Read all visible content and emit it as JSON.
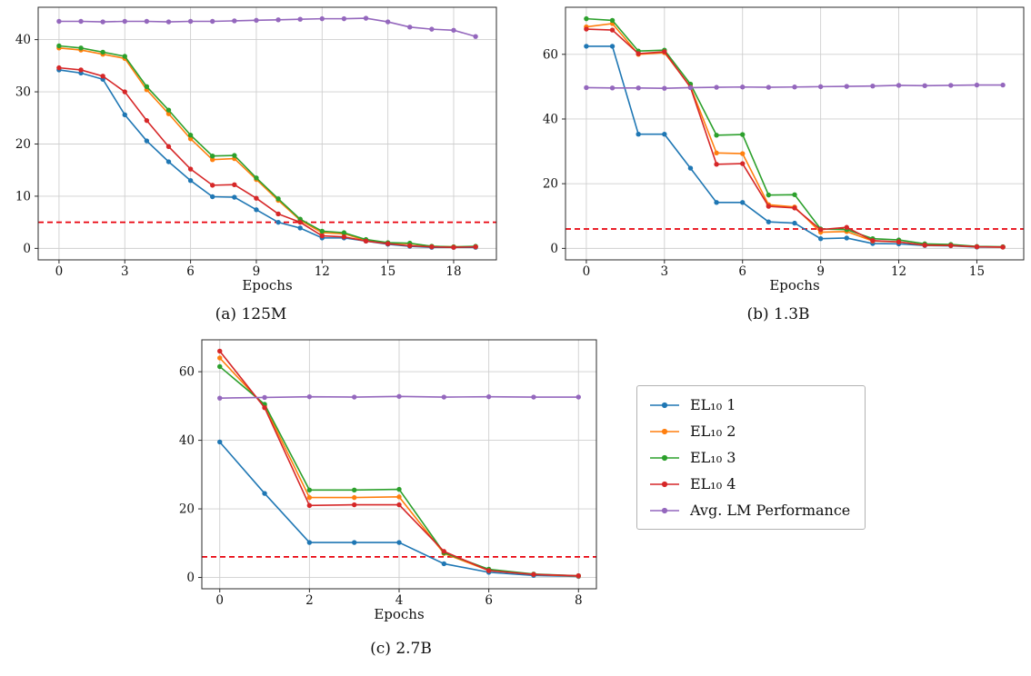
{
  "style": {
    "background": "#ffffff",
    "grid_color": "#cfcfcf",
    "spine_color": "#2b2b2b",
    "text_color": "#111111",
    "threshold_color": "#e8000b"
  },
  "legend": {
    "items": [
      {
        "label": "EL₁₀ 1",
        "color": "#1f77b4"
      },
      {
        "label": "EL₁₀ 2",
        "color": "#ff7f0e"
      },
      {
        "label": "EL₁₀ 3",
        "color": "#2ca02c"
      },
      {
        "label": "EL₁₀ 4",
        "color": "#d62728"
      },
      {
        "label": "Avg. LM Performance",
        "color": "#9467bd"
      }
    ]
  },
  "chart_data": [
    {
      "id": "a",
      "type": "line",
      "caption": "(a) 125M",
      "xlabel": "Epochs",
      "xlim": [
        -0.95,
        19.95
      ],
      "ylim": [
        -2.2,
        46.2
      ],
      "xticks": [
        0,
        3,
        6,
        9,
        12,
        15,
        18
      ],
      "yticks": [
        0,
        10,
        20,
        30,
        40
      ],
      "grid": true,
      "threshold": 5,
      "x": [
        0,
        1,
        2,
        3,
        4,
        5,
        6,
        7,
        8,
        9,
        10,
        11,
        12,
        13,
        14,
        15,
        16,
        17,
        18,
        19
      ],
      "series": [
        {
          "name": "EL₁₀ 1",
          "color": "#1f77b4",
          "values": [
            34.2,
            33.6,
            32.4,
            25.6,
            20.6,
            16.6,
            13.0,
            9.9,
            9.8,
            7.4,
            5.0,
            3.9,
            2.0,
            2.0,
            1.4,
            0.8,
            0.4,
            0.2,
            0.2,
            0.2
          ]
        },
        {
          "name": "EL₁₀ 2",
          "color": "#ff7f0e",
          "values": [
            38.4,
            38.0,
            37.2,
            36.4,
            30.4,
            25.8,
            21.0,
            17.0,
            17.2,
            13.2,
            9.2,
            5.4,
            3.0,
            2.8,
            1.5,
            1.0,
            0.9,
            0.4,
            0.3,
            0.3
          ]
        },
        {
          "name": "EL₁₀ 3",
          "color": "#2ca02c",
          "values": [
            38.8,
            38.4,
            37.6,
            36.8,
            31.0,
            26.5,
            21.7,
            17.7,
            17.8,
            13.5,
            9.5,
            5.6,
            3.3,
            3.0,
            1.7,
            1.1,
            1.0,
            0.4,
            0.3,
            0.4
          ]
        },
        {
          "name": "EL₁₀ 4",
          "color": "#d62728",
          "values": [
            34.6,
            34.2,
            33.0,
            30.0,
            24.5,
            19.5,
            15.2,
            12.1,
            12.2,
            9.6,
            6.6,
            5.0,
            2.4,
            2.2,
            1.4,
            0.9,
            0.5,
            0.3,
            0.2,
            0.3
          ]
        },
        {
          "name": "Avg. LM Performance",
          "color": "#9467bd",
          "values": [
            43.5,
            43.5,
            43.4,
            43.5,
            43.5,
            43.4,
            43.5,
            43.5,
            43.6,
            43.7,
            43.8,
            43.9,
            44.0,
            44.0,
            44.1,
            43.4,
            42.4,
            42.0,
            41.8,
            40.6
          ]
        }
      ]
    },
    {
      "id": "b",
      "type": "line",
      "caption": "(b) 1.3B",
      "xlabel": "Epochs",
      "xlim": [
        -0.8,
        16.8
      ],
      "ylim": [
        -3.55,
        74.55
      ],
      "xticks": [
        0,
        3,
        6,
        9,
        12,
        15
      ],
      "yticks": [
        0,
        20,
        40,
        60
      ],
      "grid": true,
      "threshold": 6,
      "x": [
        0,
        1,
        2,
        3,
        4,
        5,
        6,
        7,
        8,
        9,
        10,
        11,
        12,
        13,
        14,
        15,
        16
      ],
      "series": [
        {
          "name": "EL₁₀ 1",
          "color": "#1f77b4",
          "values": [
            62.5,
            62.5,
            35.3,
            35.3,
            24.8,
            14.2,
            14.2,
            8.2,
            7.8,
            3.0,
            3.2,
            1.5,
            1.4,
            0.9,
            0.8,
            0.4,
            0.4
          ]
        },
        {
          "name": "EL₁₀ 2",
          "color": "#ff7f0e",
          "values": [
            68.5,
            69.5,
            60.0,
            60.5,
            50.0,
            29.5,
            29.3,
            13.5,
            12.8,
            5.0,
            5.2,
            2.3,
            2.0,
            1.0,
            0.9,
            0.5,
            0.4
          ]
        },
        {
          "name": "EL₁₀ 3",
          "color": "#2ca02c",
          "values": [
            71.0,
            70.5,
            61.0,
            61.3,
            50.8,
            35.0,
            35.2,
            16.5,
            16.6,
            6.0,
            5.8,
            3.0,
            2.6,
            1.4,
            1.2,
            0.6,
            0.5
          ]
        },
        {
          "name": "EL₁₀ 4",
          "color": "#d62728",
          "values": [
            67.8,
            67.5,
            60.2,
            60.8,
            49.8,
            26.0,
            26.2,
            13.0,
            12.5,
            5.8,
            6.5,
            2.4,
            2.0,
            1.0,
            0.9,
            0.5,
            0.4
          ]
        },
        {
          "name": "Avg. LM Performance",
          "color": "#9467bd",
          "values": [
            49.7,
            49.6,
            49.6,
            49.5,
            49.7,
            49.8,
            49.9,
            49.8,
            49.9,
            50.0,
            50.1,
            50.2,
            50.4,
            50.3,
            50.4,
            50.5,
            50.5
          ]
        }
      ]
    },
    {
      "id": "c",
      "type": "line",
      "caption": "(c) 2.7B",
      "xlabel": "Epochs",
      "xlim": [
        -0.4,
        8.4
      ],
      "ylim": [
        -3.3,
        69.3
      ],
      "xticks": [
        0,
        2,
        4,
        6,
        8
      ],
      "yticks": [
        0,
        20,
        40,
        60
      ],
      "grid": true,
      "threshold": 6,
      "x": [
        0,
        1,
        2,
        3,
        4,
        5,
        6,
        7,
        8
      ],
      "series": [
        {
          "name": "EL₁₀ 1",
          "color": "#1f77b4",
          "values": [
            39.5,
            24.5,
            10.2,
            10.2,
            10.2,
            4.0,
            1.5,
            0.6,
            0.3
          ]
        },
        {
          "name": "EL₁₀ 2",
          "color": "#ff7f0e",
          "values": [
            64.0,
            50.0,
            23.3,
            23.3,
            23.5,
            7.0,
            2.0,
            0.9,
            0.4
          ]
        },
        {
          "name": "EL₁₀ 3",
          "color": "#2ca02c",
          "values": [
            61.5,
            50.5,
            25.5,
            25.5,
            25.7,
            7.2,
            2.4,
            1.0,
            0.5
          ]
        },
        {
          "name": "EL₁₀ 4",
          "color": "#d62728",
          "values": [
            66.0,
            49.5,
            21.0,
            21.2,
            21.2,
            7.6,
            2.0,
            0.9,
            0.5
          ]
        },
        {
          "name": "Avg. LM Performance",
          "color": "#9467bd",
          "values": [
            52.3,
            52.5,
            52.7,
            52.6,
            52.8,
            52.6,
            52.7,
            52.6,
            52.6
          ]
        }
      ]
    }
  ]
}
